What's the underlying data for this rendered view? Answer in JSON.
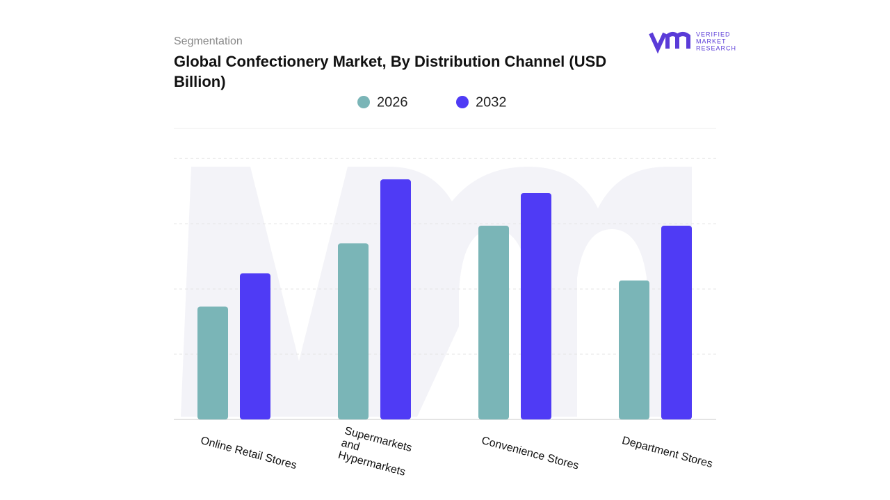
{
  "chart_data": {
    "type": "bar",
    "subtitle": "Segmentation",
    "title": "Global Confectionery Market, By Distribution Channel (USD Billion)",
    "brand": [
      "VERIFIED",
      "MARKET",
      "RESEARCH"
    ],
    "categories": [
      "Online Retail Stores",
      "Supermarkets and Hypermarkets",
      "Convenience Stores",
      "Department Stores"
    ],
    "series": [
      {
        "name": "2026",
        "color": "#7ab5b7",
        "values": [
          1.73,
          2.7,
          2.97,
          2.13
        ]
      },
      {
        "name": "2032",
        "color": "#4f3bf5",
        "values": [
          2.24,
          3.68,
          3.47,
          2.97
        ]
      }
    ],
    "ylim": [
      0,
      4.46
    ],
    "yticks": [
      1,
      2,
      3,
      4
    ],
    "grid": true
  }
}
